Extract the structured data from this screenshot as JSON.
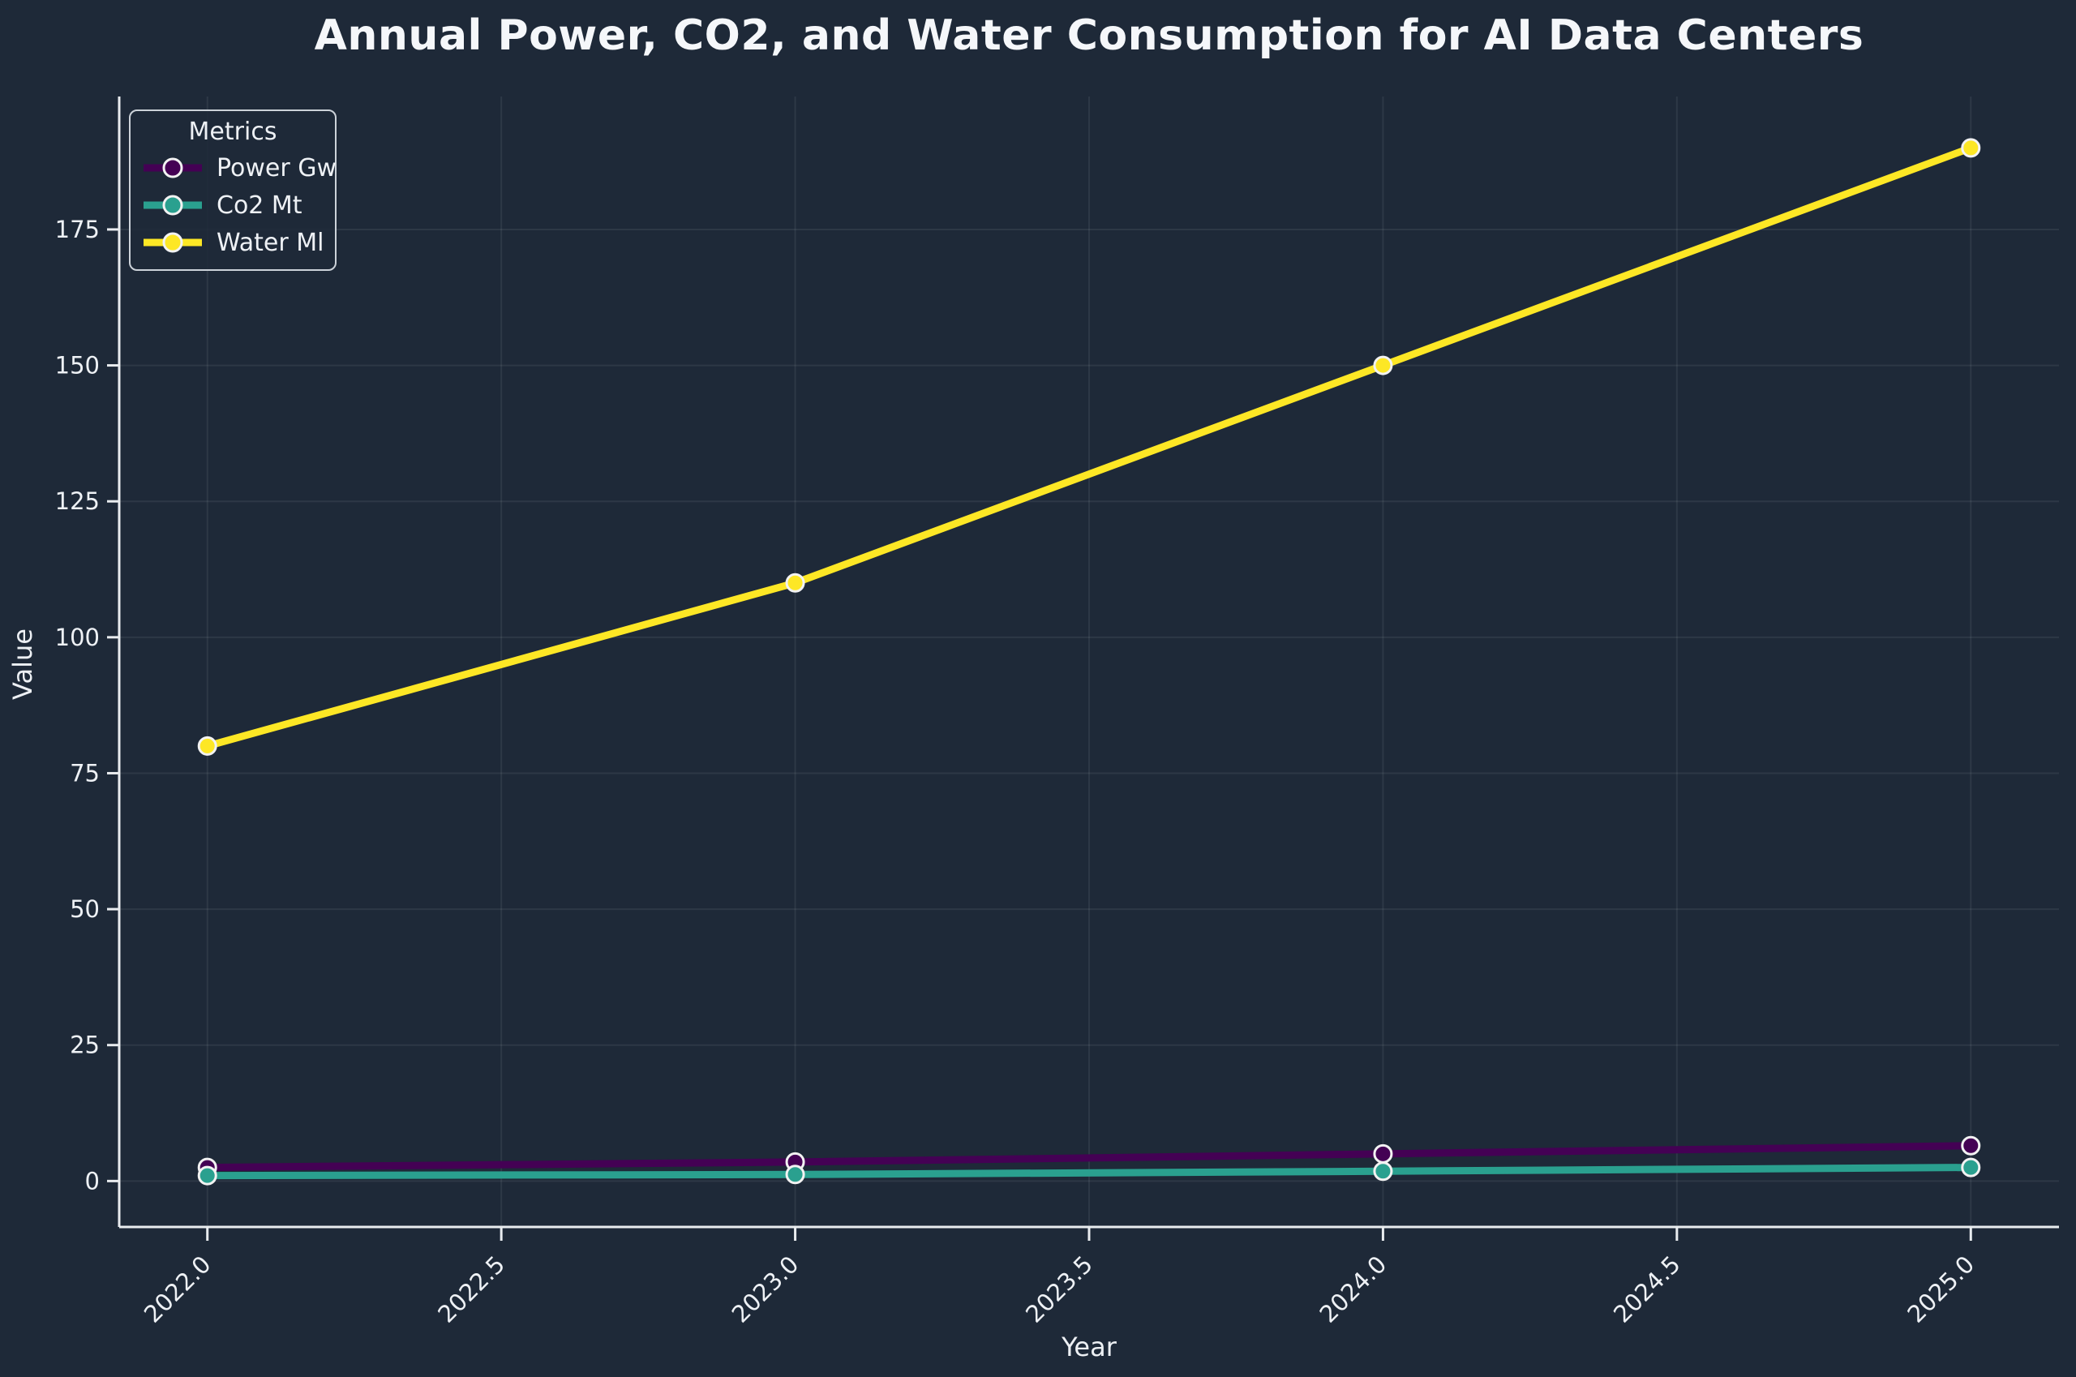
{
  "title": "Annual Power, CO2, and Water Consumption for AI Data Centers",
  "legend": {
    "title": "Metrics",
    "position": "upper left"
  },
  "colors": {
    "background": "#1e2938",
    "text": "#eef1f5",
    "axis": "#e9ecef",
    "grid_alpha_white": 0.07,
    "power": "#440154",
    "co2": "#2aa08f",
    "water": "#fde725",
    "marker_edge": "#f2f2f2"
  },
  "chart_data": {
    "type": "line",
    "title": "Annual Power, CO2, and Water Consumption for AI Data Centers",
    "xlabel": "Year",
    "ylabel": "Value",
    "x": [
      2022,
      2023,
      2024,
      2025
    ],
    "series": [
      {
        "name": "Power Gw",
        "color": "#440154",
        "values": [
          2.5,
          3.5,
          5,
          6.5
        ]
      },
      {
        "name": "Co2 Mt",
        "color": "#2aa08f",
        "values": [
          1,
          1.2,
          1.8,
          2.5
        ]
      },
      {
        "name": "Water Ml",
        "color": "#fde725",
        "values": [
          80,
          110,
          150,
          190
        ]
      }
    ],
    "xlim": [
      2021.85,
      2025.15
    ],
    "ylim": [
      -8.45,
      199.45
    ],
    "xticks": [
      2022.0,
      2022.5,
      2023.0,
      2023.5,
      2024.0,
      2024.5,
      2025.0
    ],
    "xtick_labels": [
      "2022.0",
      "2022.5",
      "2023.0",
      "2023.5",
      "2024.0",
      "2024.5",
      "2025.0"
    ],
    "yticks": [
      0,
      25,
      50,
      75,
      100,
      125,
      150,
      175
    ],
    "ytick_labels": [
      "0",
      "25",
      "50",
      "75",
      "100",
      "125",
      "150",
      "175"
    ],
    "grid": true,
    "legend_position": "upper left"
  }
}
